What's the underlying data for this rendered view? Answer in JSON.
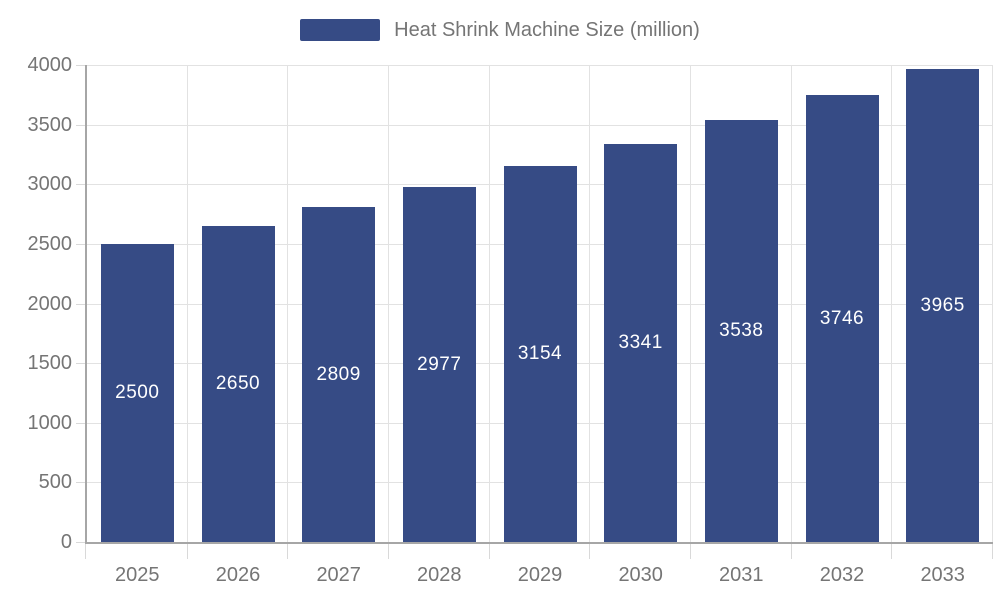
{
  "legend": {
    "label": "Heat Shrink Machine Size (million)"
  },
  "colors": {
    "bar": "#364B85",
    "bar_label": "#FFFFFF",
    "axis_line": "#A6A6A6",
    "grid_line": "#E2E2E2",
    "tick_mark": "#D9D9D9",
    "tick_label": "#757575",
    "legend_text": "#757575",
    "background": "#FFFFFF"
  },
  "chart_data": {
    "type": "bar",
    "title": "Heat Shrink Machine Size (million)",
    "series_name": "Heat Shrink Machine Size (million)",
    "categories": [
      "2025",
      "2026",
      "2027",
      "2028",
      "2029",
      "2030",
      "2031",
      "2032",
      "2033"
    ],
    "values": [
      2500,
      2650,
      2809,
      2977,
      3154,
      3341,
      3538,
      3746,
      3965
    ],
    "xlabel": "",
    "ylabel": "",
    "ylim": [
      0,
      4000
    ],
    "yticks": [
      0,
      500,
      1000,
      1500,
      2000,
      2500,
      3000,
      3500,
      4000
    ],
    "grid": true,
    "legend_position": "top",
    "bar_labels_visible": true
  }
}
